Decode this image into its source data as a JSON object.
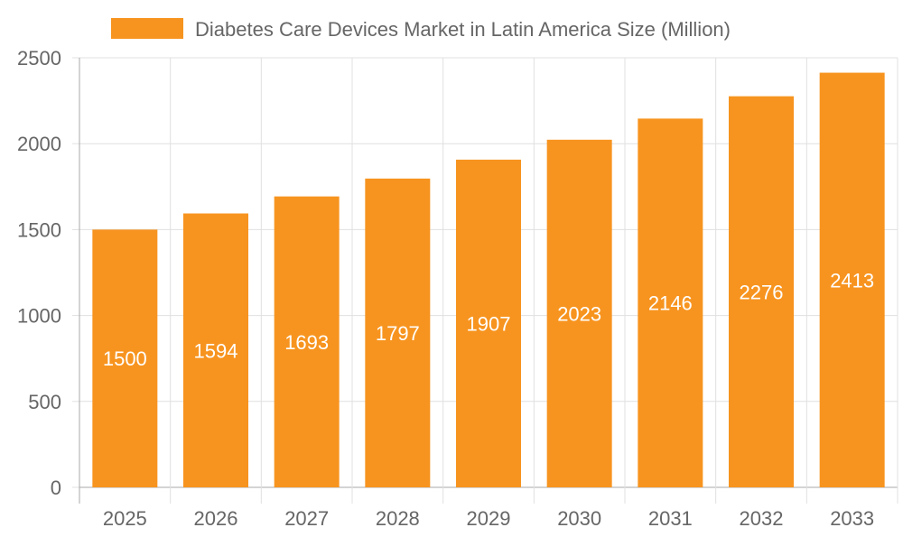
{
  "chart_data": {
    "type": "bar",
    "title": "",
    "xlabel": "",
    "ylabel": "",
    "categories": [
      "2025",
      "2026",
      "2027",
      "2028",
      "2029",
      "2030",
      "2031",
      "2032",
      "2033"
    ],
    "series": [
      {
        "name": "Diabetes Care Devices Market in Latin America Size (Million)",
        "values": [
          1500,
          1594,
          1693,
          1797,
          1907,
          2023,
          2146,
          2276,
          2413
        ]
      }
    ],
    "ylim": [
      0,
      2500
    ],
    "yticks": [
      0,
      500,
      1000,
      1500,
      2000,
      2500
    ],
    "grid": true,
    "legend": "top",
    "data_labels": true,
    "colors": {
      "bar": "#F7941F",
      "grid": "#e0e0e0",
      "axis": "#aaaaaa",
      "text": "#666666",
      "label": "#ffffff"
    }
  }
}
